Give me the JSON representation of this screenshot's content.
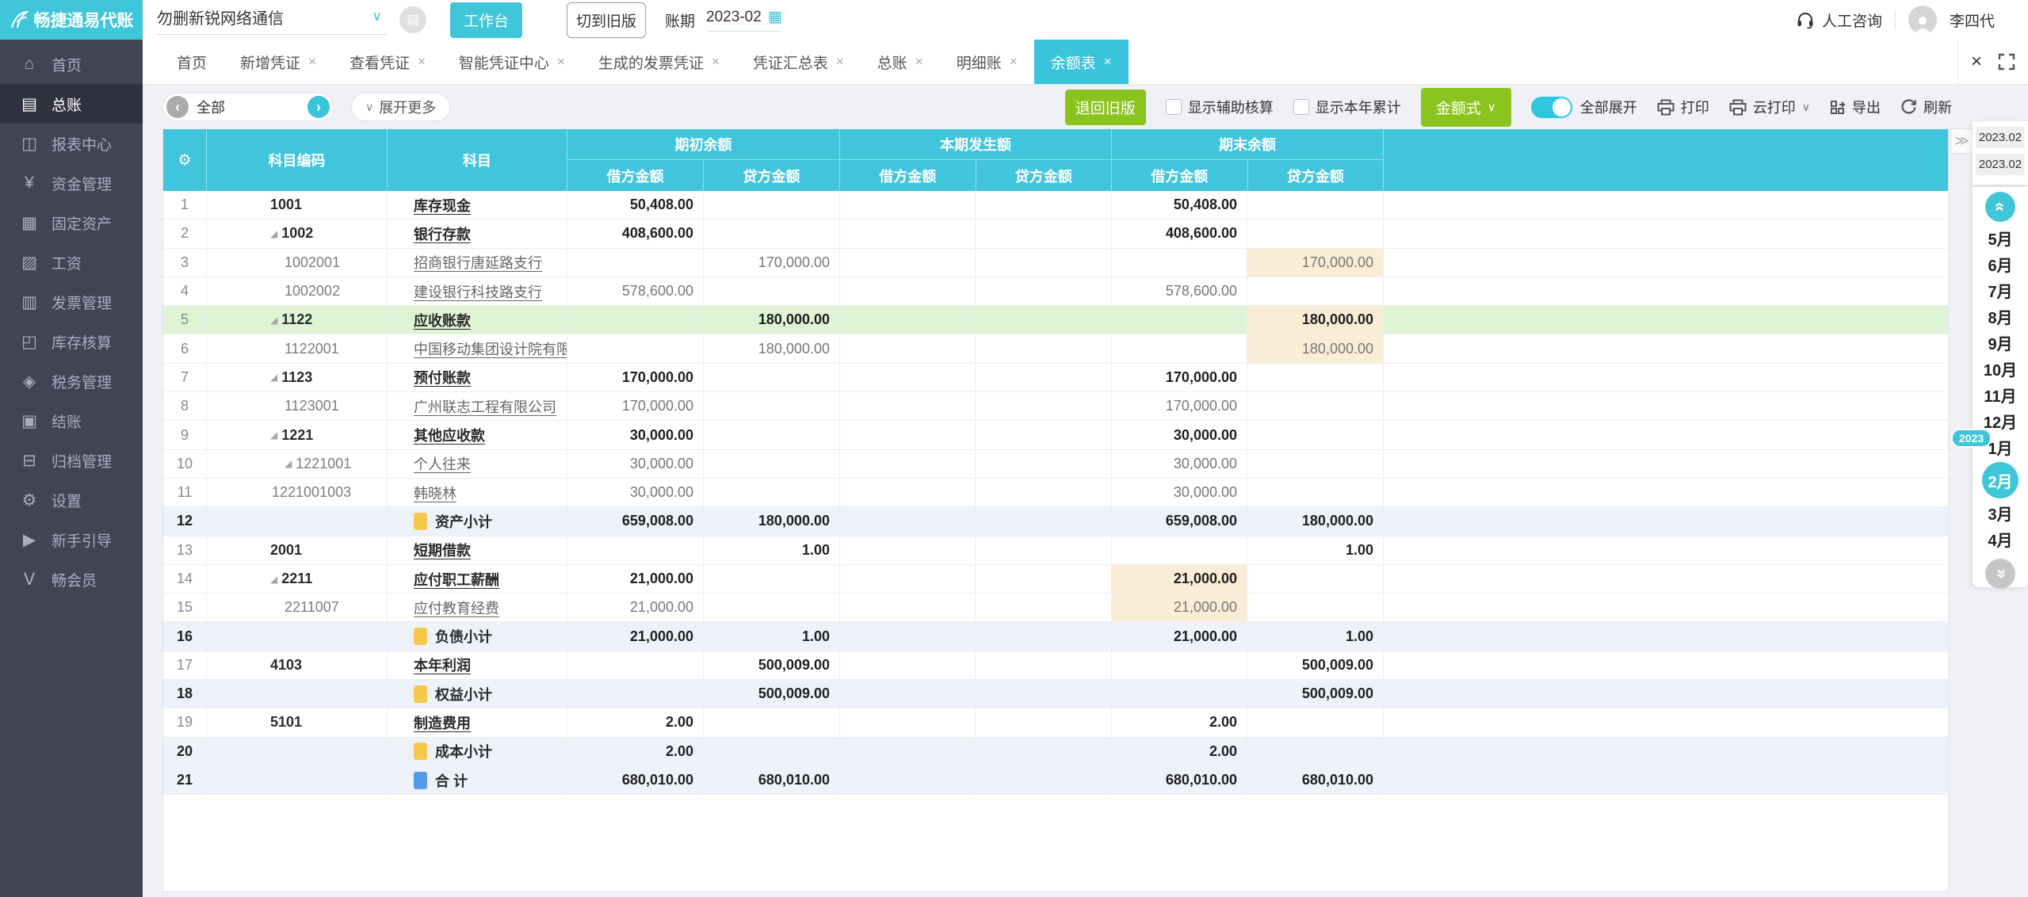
{
  "app_title": "畅捷通易代账",
  "topbar": {
    "company": "勿删新锐网络通信",
    "workbench": "工作台",
    "switch_old": "切到旧版",
    "period_label": "账期",
    "period_value": "2023-02",
    "support": "人工咨询",
    "user": "李四代"
  },
  "sidebar": {
    "items": [
      {
        "key": "home",
        "label": "首页",
        "icon": "home-icon",
        "glyph": "⌂",
        "active": false
      },
      {
        "key": "general-ledger",
        "label": "总账",
        "icon": "ledger-icon",
        "glyph": "▤",
        "active": true
      },
      {
        "key": "report-center",
        "label": "报表中心",
        "icon": "report-icon",
        "glyph": "◫",
        "active": false
      },
      {
        "key": "funds",
        "label": "资金管理",
        "icon": "money-bag-icon",
        "glyph": "¥",
        "active": false
      },
      {
        "key": "fixed-assets",
        "label": "固定资产",
        "icon": "building-icon",
        "glyph": "▦",
        "active": false
      },
      {
        "key": "payroll",
        "label": "工资",
        "icon": "payroll-icon",
        "glyph": "▨",
        "active": false
      },
      {
        "key": "invoice",
        "label": "发票管理",
        "icon": "invoice-icon",
        "glyph": "▥",
        "active": false
      },
      {
        "key": "inventory",
        "label": "库存核算",
        "icon": "warehouse-icon",
        "glyph": "◰",
        "active": false
      },
      {
        "key": "tax",
        "label": "税务管理",
        "icon": "tax-icon",
        "glyph": "◈",
        "active": false
      },
      {
        "key": "closing",
        "label": "结账",
        "icon": "closing-icon",
        "glyph": "▣",
        "active": false
      },
      {
        "key": "archive",
        "label": "归档管理",
        "icon": "archive-icon",
        "glyph": "⊟",
        "active": false
      },
      {
        "key": "settings",
        "label": "设置",
        "icon": "gear-icon",
        "glyph": "⚙",
        "active": false
      },
      {
        "key": "guide",
        "label": "新手引导",
        "icon": "play-icon",
        "glyph": "▶",
        "active": false
      },
      {
        "key": "member",
        "label": "畅会员",
        "icon": "member-v-icon",
        "glyph": "Ⅴ",
        "active": false
      }
    ]
  },
  "tabs": [
    {
      "key": "home",
      "label": "首页",
      "closable": false,
      "active": false
    },
    {
      "key": "new-voucher",
      "label": "新增凭证",
      "closable": true,
      "active": false
    },
    {
      "key": "view-voucher",
      "label": "查看凭证",
      "closable": true,
      "active": false
    },
    {
      "key": "smart-voucher-center",
      "label": "智能凭证中心",
      "closable": true,
      "active": false
    },
    {
      "key": "generated-invoice-voucher",
      "label": "生成的发票凭证",
      "closable": true,
      "active": false
    },
    {
      "key": "voucher-summary",
      "label": "凭证汇总表",
      "closable": true,
      "active": false
    },
    {
      "key": "general-ledger",
      "label": "总账",
      "closable": true,
      "active": false
    },
    {
      "key": "detail-ledger",
      "label": "明细账",
      "closable": true,
      "active": false
    },
    {
      "key": "balance-sheet",
      "label": "余额表",
      "closable": true,
      "active": true
    }
  ],
  "toolbar": {
    "filter_all": "全部",
    "expand_more": "展开更多",
    "back_old": "退回旧版",
    "chk_aux": "显示辅助核算",
    "chk_ytd": "显示本年累计",
    "amount_style": "金额式",
    "expand_all": "全部展开",
    "print": "打印",
    "cloud_print": "云打印",
    "export": "导出",
    "refresh": "刷新"
  },
  "table": {
    "header": {
      "code": "科目编码",
      "subject": "科目",
      "opening": "期初余额",
      "current": "本期发生额",
      "closing": "期末余额",
      "debit": "借方金额",
      "credit": "贷方金额"
    },
    "rows": [
      {
        "n": "1",
        "code": "1001",
        "lvl": 1,
        "exp": false,
        "name": "库存现金",
        "bold": true,
        "od": "50,408.00",
        "oc": "",
        "pd": "",
        "pc": "",
        "ed": "50,408.00",
        "ec": "",
        "hl": "",
        "bg": "",
        "icon": ""
      },
      {
        "n": "2",
        "code": "1002",
        "lvl": 1,
        "exp": true,
        "name": "银行存款",
        "bold": true,
        "od": "408,600.00",
        "oc": "",
        "pd": "",
        "pc": "",
        "ed": "408,600.00",
        "ec": "",
        "hl": "",
        "bg": "",
        "icon": ""
      },
      {
        "n": "3",
        "code": "1002001",
        "lvl": 2,
        "exp": false,
        "name": "招商银行唐延路支行",
        "bold": false,
        "od": "",
        "oc": "170,000.00",
        "pd": "",
        "pc": "",
        "ed": "",
        "ec": "170,000.00",
        "hl": "ec",
        "bg": "",
        "icon": ""
      },
      {
        "n": "4",
        "code": "1002002",
        "lvl": 2,
        "exp": false,
        "name": "建设银行科技路支行",
        "bold": false,
        "od": "578,600.00",
        "oc": "",
        "pd": "",
        "pc": "",
        "ed": "578,600.00",
        "ec": "",
        "hl": "",
        "bg": "",
        "icon": ""
      },
      {
        "n": "5",
        "code": "1122",
        "lvl": 1,
        "exp": true,
        "name": "应收账款",
        "bold": true,
        "od": "",
        "oc": "180,000.00",
        "pd": "",
        "pc": "",
        "ed": "",
        "ec": "180,000.00",
        "hl": "ec",
        "bg": "green",
        "icon": ""
      },
      {
        "n": "6",
        "code": "1122001",
        "lvl": 2,
        "exp": false,
        "name": "中国移动集团设计院有限公司陕",
        "bold": false,
        "od": "",
        "oc": "180,000.00",
        "pd": "",
        "pc": "",
        "ed": "",
        "ec": "180,000.00",
        "hl": "ec",
        "bg": "",
        "icon": ""
      },
      {
        "n": "7",
        "code": "1123",
        "lvl": 1,
        "exp": true,
        "name": "预付账款",
        "bold": true,
        "od": "170,000.00",
        "oc": "",
        "pd": "",
        "pc": "",
        "ed": "170,000.00",
        "ec": "",
        "hl": "",
        "bg": "",
        "icon": ""
      },
      {
        "n": "8",
        "code": "1123001",
        "lvl": 2,
        "exp": false,
        "name": "广州联志工程有限公司",
        "bold": false,
        "od": "170,000.00",
        "oc": "",
        "pd": "",
        "pc": "",
        "ed": "170,000.00",
        "ec": "",
        "hl": "",
        "bg": "",
        "icon": ""
      },
      {
        "n": "9",
        "code": "1221",
        "lvl": 1,
        "exp": true,
        "name": "其他应收款",
        "bold": true,
        "od": "30,000.00",
        "oc": "",
        "pd": "",
        "pc": "",
        "ed": "30,000.00",
        "ec": "",
        "hl": "",
        "bg": "",
        "icon": ""
      },
      {
        "n": "10",
        "code": "1221001",
        "lvl": 2,
        "exp": true,
        "name": "个人往来",
        "bold": false,
        "od": "30,000.00",
        "oc": "",
        "pd": "",
        "pc": "",
        "ed": "30,000.00",
        "ec": "",
        "hl": "",
        "bg": "",
        "icon": ""
      },
      {
        "n": "11",
        "code": "1221001003",
        "lvl": 3,
        "exp": false,
        "name": "韩晓林",
        "bold": false,
        "od": "30,000.00",
        "oc": "",
        "pd": "",
        "pc": "",
        "ed": "30,000.00",
        "ec": "",
        "hl": "",
        "bg": "",
        "icon": ""
      },
      {
        "n": "12",
        "code": "",
        "lvl": 0,
        "exp": false,
        "name": "资产小计",
        "bold": true,
        "od": "659,008.00",
        "oc": "180,000.00",
        "pd": "",
        "pc": "",
        "ed": "659,008.00",
        "ec": "180,000.00",
        "hl": "",
        "bg": "blue",
        "icon": "yellow"
      },
      {
        "n": "13",
        "code": "2001",
        "lvl": 1,
        "exp": false,
        "name": "短期借款",
        "bold": true,
        "od": "",
        "oc": "1.00",
        "pd": "",
        "pc": "",
        "ed": "",
        "ec": "1.00",
        "hl": "",
        "bg": "",
        "icon": ""
      },
      {
        "n": "14",
        "code": "2211",
        "lvl": 1,
        "exp": true,
        "name": "应付职工薪酬",
        "bold": true,
        "od": "21,000.00",
        "oc": "",
        "pd": "",
        "pc": "",
        "ed": "21,000.00",
        "ec": "",
        "hl": "ed",
        "bg": "",
        "icon": ""
      },
      {
        "n": "15",
        "code": "2211007",
        "lvl": 2,
        "exp": false,
        "name": "应付教育经费",
        "bold": false,
        "od": "21,000.00",
        "oc": "",
        "pd": "",
        "pc": "",
        "ed": "21,000.00",
        "ec": "",
        "hl": "ed",
        "bg": "",
        "icon": ""
      },
      {
        "n": "16",
        "code": "",
        "lvl": 0,
        "exp": false,
        "name": "负债小计",
        "bold": true,
        "od": "21,000.00",
        "oc": "1.00",
        "pd": "",
        "pc": "",
        "ed": "21,000.00",
        "ec": "1.00",
        "hl": "",
        "bg": "blue",
        "icon": "yellow"
      },
      {
        "n": "17",
        "code": "4103",
        "lvl": 1,
        "exp": false,
        "name": "本年利润",
        "bold": true,
        "od": "",
        "oc": "500,009.00",
        "pd": "",
        "pc": "",
        "ed": "",
        "ec": "500,009.00",
        "hl": "",
        "bg": "",
        "icon": ""
      },
      {
        "n": "18",
        "code": "",
        "lvl": 0,
        "exp": false,
        "name": "权益小计",
        "bold": true,
        "od": "",
        "oc": "500,009.00",
        "pd": "",
        "pc": "",
        "ed": "",
        "ec": "500,009.00",
        "hl": "",
        "bg": "blue",
        "icon": "yellow"
      },
      {
        "n": "19",
        "code": "5101",
        "lvl": 1,
        "exp": false,
        "name": "制造费用",
        "bold": true,
        "od": "2.00",
        "oc": "",
        "pd": "",
        "pc": "",
        "ed": "2.00",
        "ec": "",
        "hl": "",
        "bg": "",
        "icon": ""
      },
      {
        "n": "20",
        "code": "",
        "lvl": 0,
        "exp": false,
        "name": "成本小计",
        "bold": true,
        "od": "2.00",
        "oc": "",
        "pd": "",
        "pc": "",
        "ed": "2.00",
        "ec": "",
        "hl": "",
        "bg": "blue",
        "icon": "yellow"
      },
      {
        "n": "21",
        "code": "",
        "lvl": 0,
        "exp": false,
        "name": "合 计",
        "bold": true,
        "od": "680,010.00",
        "oc": "680,010.00",
        "pd": "",
        "pc": "",
        "ed": "680,010.00",
        "ec": "680,010.00",
        "hl": "",
        "bg": "blue",
        "icon": "blue"
      }
    ]
  },
  "right_panel": {
    "period_boxes": [
      "2023.02",
      "2023.02"
    ],
    "year_badge": "2023",
    "months": [
      "5月",
      "6月",
      "7月",
      "8月",
      "9月",
      "10月",
      "11月",
      "12月",
      "1月",
      "2月",
      "3月",
      "4月"
    ],
    "selected_month": "2月"
  },
  "colors": {
    "accent_teal": "#3FC6D8",
    "header_teal": "#40C5DC",
    "sidebar_dark": "#424456",
    "green_button": "#8CC41F",
    "cell_highlight_orange": "#FAEDD6",
    "row_selected_green": "#DFF3D5",
    "row_subtotal_blue": "#EEF2FB",
    "subtotal_icon_yellow": "#F7C84E",
    "total_icon_blue": "#549BE8"
  }
}
